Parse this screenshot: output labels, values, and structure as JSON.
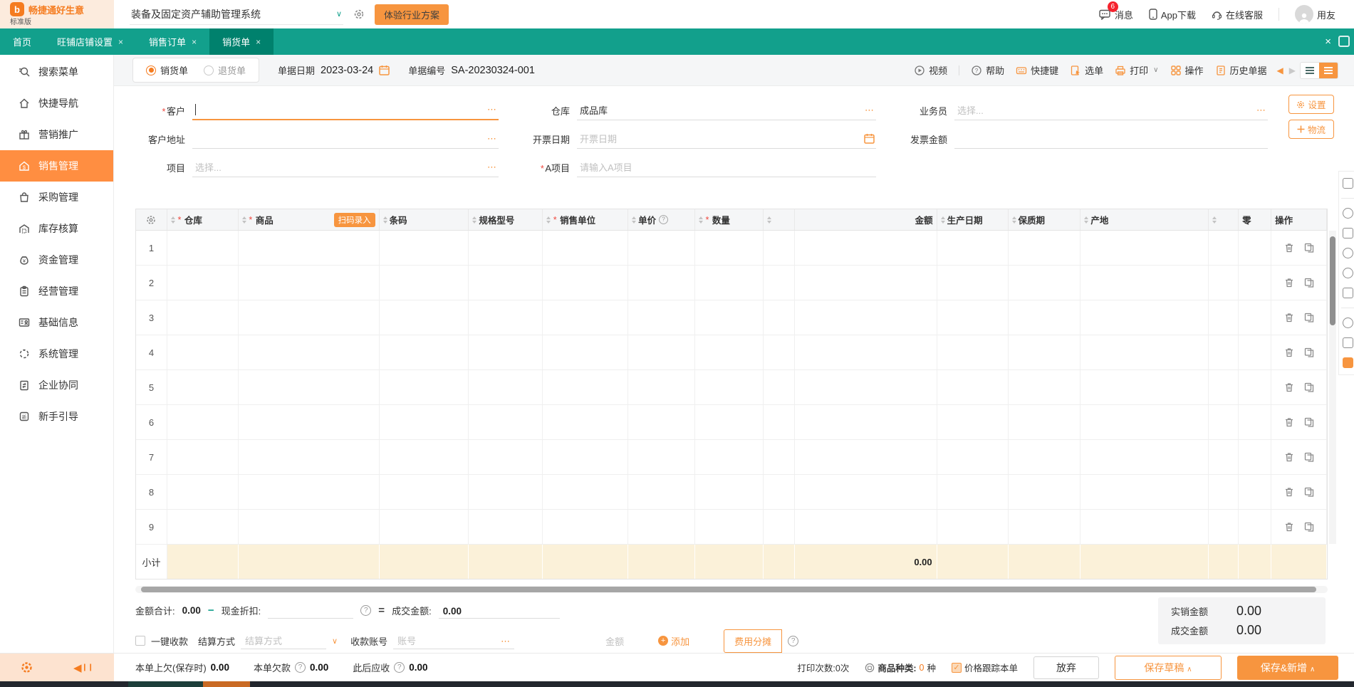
{
  "icons": {
    "more": "⋯",
    "close": "×",
    "chevron_down": "∨",
    "question": "?",
    "prev": "◀",
    "next": "▶",
    "minus": "−",
    "equals": "=",
    "check": "✓",
    "caret_up": "∧",
    "pipe": "|"
  },
  "topbar": {
    "logo_title": "畅捷通好生意",
    "edition": "标准版",
    "system_name": "装备及固定资产辅助管理系统",
    "experience_btn": "体验行业方案",
    "messages": "消息",
    "messages_badge": "6",
    "app_download": "App下载",
    "online_service": "在线客服",
    "username": "用友"
  },
  "tabs": [
    {
      "label": "首页",
      "closable": false,
      "active": false
    },
    {
      "label": "旺铺店铺设置",
      "closable": true,
      "active": false
    },
    {
      "label": "销售订单",
      "closable": true,
      "active": false
    },
    {
      "label": "销货单",
      "closable": true,
      "active": true
    }
  ],
  "sidebar": {
    "items": [
      {
        "label": "搜索菜单",
        "icon": "search-icon",
        "active": false
      },
      {
        "label": "快捷导航",
        "icon": "home-icon",
        "active": false
      },
      {
        "label": "营销推广",
        "icon": "gift-icon",
        "active": false
      },
      {
        "label": "销售管理",
        "icon": "sales-icon",
        "active": true
      },
      {
        "label": "采购管理",
        "icon": "purchase-icon",
        "active": false
      },
      {
        "label": "库存核算",
        "icon": "inventory-icon",
        "active": false
      },
      {
        "label": "资金管理",
        "icon": "fund-icon",
        "active": false
      },
      {
        "label": "经营管理",
        "icon": "business-icon",
        "active": false
      },
      {
        "label": "基础信息",
        "icon": "baseinfo-icon",
        "active": false
      },
      {
        "label": "系统管理",
        "icon": "system-icon",
        "active": false
      },
      {
        "label": "企业协同",
        "icon": "collab-icon",
        "active": false
      },
      {
        "label": "新手引导",
        "icon": "guide-icon",
        "active": false
      }
    ]
  },
  "doc_toolbar": {
    "type_sale": "销货单",
    "type_return": "退货单",
    "date_label": "单据日期",
    "date_value": "2023-03-24",
    "no_label": "单据编号",
    "no_value": "SA-20230324-001",
    "actions": [
      {
        "label": "视频",
        "icon": "video-icon"
      },
      {
        "label": "帮助",
        "icon": "help-icon"
      },
      {
        "label": "快捷键",
        "icon": "keyboard-icon"
      },
      {
        "label": "选单",
        "icon": "pick-icon"
      },
      {
        "label": "打印",
        "icon": "print-icon",
        "dropdown": true
      },
      {
        "label": "操作",
        "icon": "operate-icon"
      },
      {
        "label": "历史单据",
        "icon": "history-icon"
      }
    ]
  },
  "form": {
    "customer_label": "客户",
    "address_label": "客户地址",
    "project_label": "项目",
    "project_placeholder": "选择...",
    "warehouse_label": "仓库",
    "warehouse_value": "成品库",
    "invoice_date_label": "开票日期",
    "invoice_date_placeholder": "开票日期",
    "aproject_label": "A项目",
    "aproject_placeholder": "请输入A项目",
    "salesman_label": "业务员",
    "salesman_placeholder": "选择...",
    "invoice_amount_label": "发票金额",
    "settings_btn": "设置",
    "logistics_btn": "物流"
  },
  "grid": {
    "columns": [
      {
        "label": "",
        "sort": false
      },
      {
        "label": "仓库",
        "required": true,
        "sort": true
      },
      {
        "label": "商品",
        "required": true,
        "sort": true,
        "badge": "扫码录入"
      },
      {
        "label": "条码",
        "sort": true
      },
      {
        "label": "规格型号",
        "sort": true
      },
      {
        "label": "销售单位",
        "required": true,
        "sort": true
      },
      {
        "label": "单价",
        "sort": true,
        "help": true
      },
      {
        "label": "数量",
        "required": true,
        "sort": true
      },
      {
        "label": "",
        "sort": true
      },
      {
        "label": "金额",
        "sort": false
      },
      {
        "label": "生产日期",
        "sort": true
      },
      {
        "label": "保质期",
        "sort": true
      },
      {
        "label": "产地",
        "sort": true
      },
      {
        "label": "",
        "sort": true
      },
      {
        "label": "零",
        "sort": false
      },
      {
        "label": "操作",
        "sort": false
      }
    ],
    "row_numbers": [
      "1",
      "2",
      "3",
      "4",
      "5",
      "6",
      "7",
      "8",
      "9"
    ],
    "subtotal_label": "小计",
    "subtotal_amount": "0.00"
  },
  "totals": {
    "sum_label": "金额合计:",
    "sum_value": "0.00",
    "discount_label": "现金折扣:",
    "deal_label": "成交金额:",
    "deal_value": "0.00"
  },
  "payment": {
    "onekey_label": "一键收款",
    "settle_label": "结算方式",
    "settle_placeholder": "结算方式",
    "account_label": "收款账号",
    "account_placeholder": "账号",
    "amount_label": "金额",
    "add_label": "添加",
    "share_btn": "费用分摊"
  },
  "summary": {
    "actual_label": "实销金额",
    "actual_value": "0.00",
    "deal_label": "成交金额",
    "deal_value": "0.00"
  },
  "bottombar": {
    "prev_label": "本单上欠(保存时)",
    "prev_value": "0.00",
    "owe_label": "本单欠款",
    "owe_value": "0.00",
    "later_label": "此后应收",
    "later_value": "0.00",
    "print_label": "打印次数:0次",
    "kind_label": "商品种类:",
    "kind_value": "0",
    "kind_unit": "种",
    "track_label": "价格跟踪本单",
    "giveup_btn": "放弃",
    "draft_btn": "保存草稿",
    "save_btn": "保存&新增"
  }
}
